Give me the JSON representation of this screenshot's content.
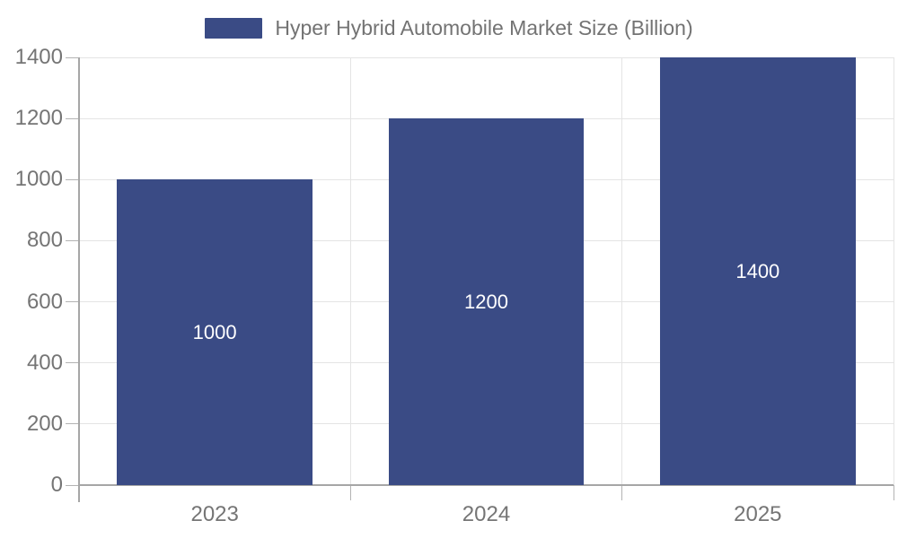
{
  "legend": {
    "label": "Hyper Hybrid Automobile Market Size (Billion)"
  },
  "chart_data": {
    "type": "bar",
    "title": "Hyper Hybrid Automobile Market Size (Billion)",
    "categories": [
      "2023",
      "2024",
      "2025"
    ],
    "values": [
      1000,
      1200,
      1400
    ],
    "data_labels": [
      "1000",
      "1200",
      "1400"
    ],
    "series": [
      {
        "name": "Hyper Hybrid Automobile Market Size (Billion)",
        "values": [
          1000,
          1200,
          1400
        ]
      }
    ],
    "xlabel": "",
    "ylabel": "",
    "ylim": [
      0,
      1400
    ],
    "yticks": [
      0,
      200,
      400,
      600,
      800,
      1000,
      1200,
      1400
    ],
    "grid": true,
    "legend_position": "top-center",
    "colors": {
      "bar": "#3A4B85",
      "grid": "#E4E4E4",
      "axis": "#A6A6A6",
      "tick": "#B3B3B3",
      "tick_label": "#757575",
      "data_label": "#FFFFFF",
      "legend_text": "#737373",
      "background": "#FFFFFF"
    }
  }
}
